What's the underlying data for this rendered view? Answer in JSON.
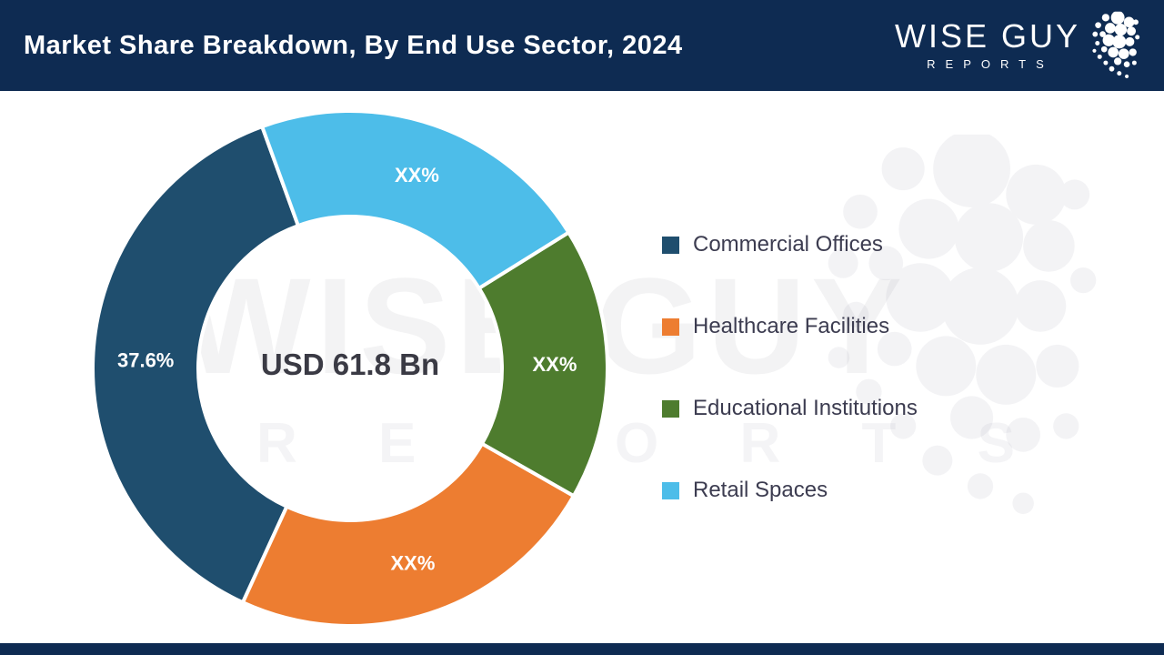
{
  "header": {
    "title": "Market Share Breakdown, By End Use Sector, 2024",
    "logo": {
      "line1": "WISE GUY",
      "line2": "REPORTS"
    }
  },
  "watermark": {
    "line1": "WISE GUY",
    "line2": "R E P O R T S"
  },
  "chart_data": {
    "type": "pie",
    "style": "donut",
    "title": "Market Share Breakdown, By End Use Sector, 2024",
    "center_label": "USD 61.8 Bn",
    "start_angle_deg": 110,
    "direction": "counterclockwise",
    "inner_radius_ratio": 0.59,
    "legend_position": "right",
    "segments": [
      {
        "name": "Commercial Offices",
        "value": 37.6,
        "label": "37.6%",
        "color": "#1f4e6e"
      },
      {
        "name": "Healthcare Facilities",
        "value": 23.6,
        "label": "XX%",
        "color": "#ed7d31"
      },
      {
        "name": "Educational Institutions",
        "value": 17.1,
        "label": "XX%",
        "color": "#4e7c2e"
      },
      {
        "name": "Retail Spaces",
        "value": 21.7,
        "label": "XX%",
        "color": "#4dbde9"
      }
    ]
  },
  "colors": {
    "header_bg": "#0e2b52",
    "center_text": "#3a3a44",
    "legend_text": "#3c3c50",
    "segment_label_text": "#ffffff",
    "watermark": "#e9e9ee"
  }
}
